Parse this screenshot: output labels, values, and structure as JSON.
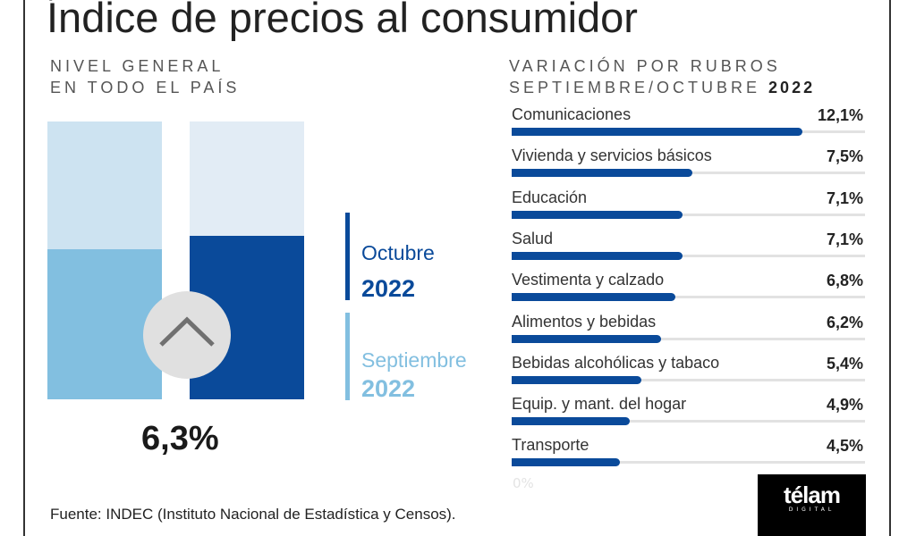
{
  "title": "Índice de precios al consumidor",
  "left": {
    "subtitle_line1": "NIVEL GENERAL",
    "subtitle_line2": "EN TODO EL PAÍS",
    "total": "6,3%",
    "arrow_icon": "chevron-up-icon",
    "legend": [
      {
        "month": "Octubre",
        "year": "2022",
        "color": "#0a4a9a",
        "light_color": "#e2ecf5",
        "fill_fraction": 0.59
      },
      {
        "month": "Septiembre",
        "year": "2022",
        "color": "#82bfe0",
        "light_color": "#cde3f1",
        "fill_fraction": 0.54
      }
    ]
  },
  "chart_data": {
    "type": "bar",
    "orientation": "horizontal",
    "title_line1": "VARIACIÓN POR RUBROS",
    "title_line2": "SEPTIEMBRE/OCTUBRE",
    "title_year": "2022",
    "categories": [
      "Comunicaciones",
      "Vivienda y servicios básicos",
      "Educación",
      "Salud",
      "Vestimenta y calzado",
      "Alimentos y bebidas",
      "Bebidas alcohólicas y tabaco",
      "Equip. y mant. del hogar",
      "Transporte"
    ],
    "values": [
      12.1,
      7.5,
      7.1,
      7.1,
      6.8,
      6.2,
      5.4,
      4.9,
      4.5
    ],
    "labels": [
      "12,1%",
      "7,5%",
      "7,1%",
      "7,1%",
      "6,8%",
      "6,2%",
      "5,4%",
      "4,9%",
      "4,5%"
    ],
    "axis_min_label": "0%",
    "xlim": [
      0,
      14.7
    ],
    "bar_color": "#0a4a9a"
  },
  "source": "Fuente: INDEC (Instituto Nacional de Estadística y Censos).",
  "logo": {
    "name": "télam",
    "sub": "DIGITAL"
  }
}
